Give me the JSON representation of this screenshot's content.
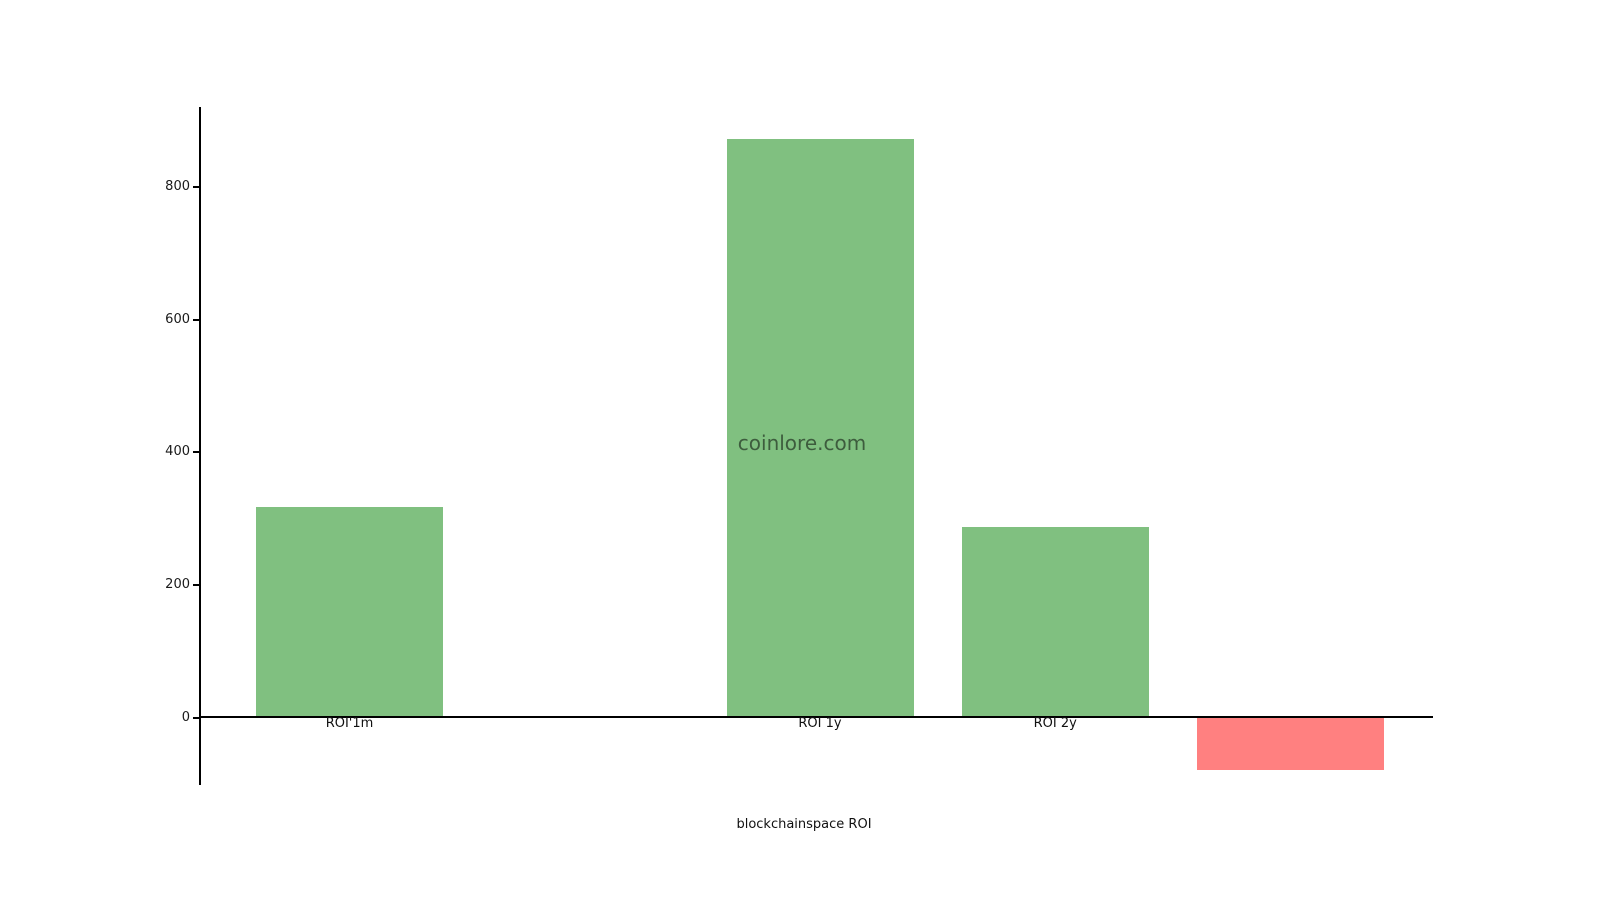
{
  "chart_data": {
    "type": "bar",
    "title": "blockchainspace ROI",
    "watermark": "coinlore.com",
    "categories": [
      "ROI'1m",
      "",
      "ROI 1y",
      "ROI 2y",
      ""
    ],
    "values": [
      317,
      0,
      873,
      287,
      -79
    ],
    "yticks": [
      0,
      200,
      400,
      600,
      800
    ],
    "ylim": [
      -102,
      921
    ],
    "xlabel": "",
    "ylabel": "",
    "grid": false,
    "legend": "none",
    "colors": {
      "positive_bar": "#80c080",
      "negative_bar": "#ff8080",
      "axis": "#000000",
      "tick_text": "#1a1a1a",
      "watermark_text": "rgba(0,0,0,0.52)"
    }
  }
}
